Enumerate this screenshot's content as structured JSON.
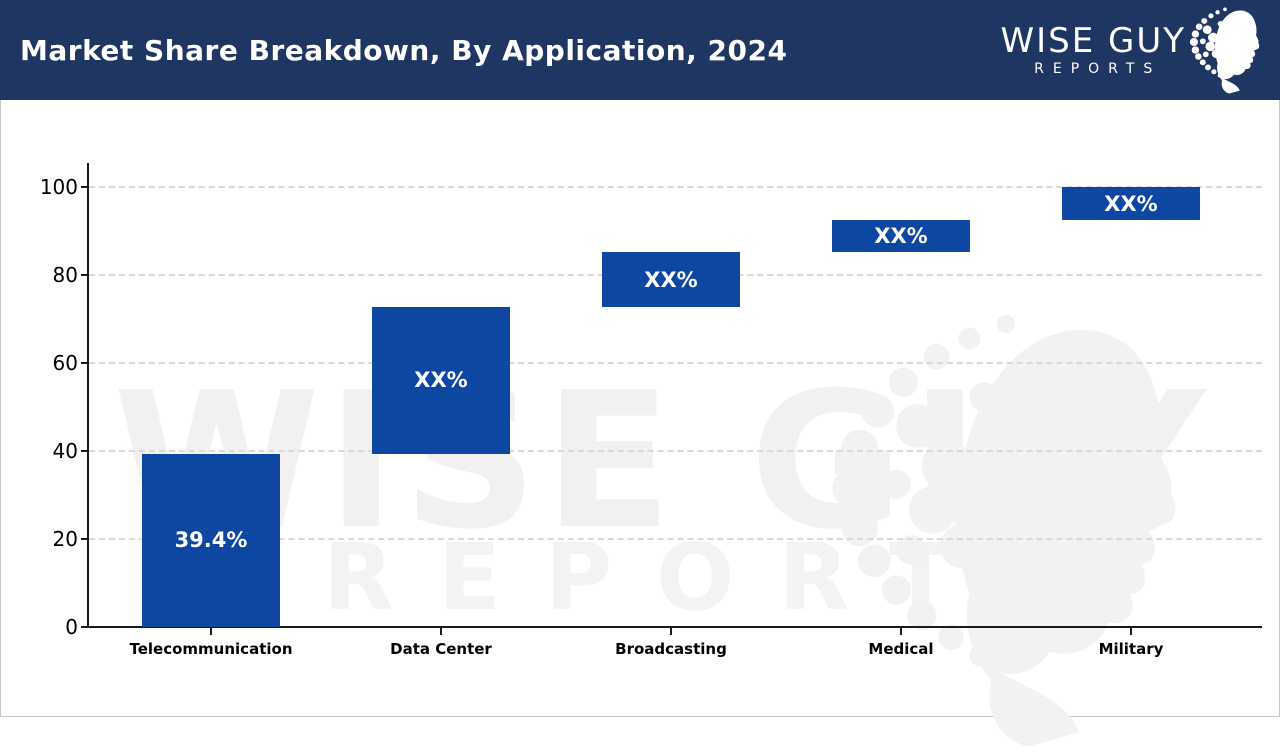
{
  "header": {
    "title": "Market Share Breakdown, By Application, 2024",
    "logo": {
      "line1": "WISE GUY",
      "line2": "REPORTS"
    }
  },
  "watermark": {
    "line1": "WISE GUY",
    "line2": "REPORTS"
  },
  "colors": {
    "header_bg": "#1f3562",
    "bar": "#0d47a1",
    "grid": "#d9d9d9",
    "axis": "#1a1a1a",
    "bar_label": "#ffffff",
    "watermark": "#f1f1f1"
  },
  "chart_data": {
    "type": "bar",
    "subtype": "waterfall",
    "title": "Market Share Breakdown, By Application, 2024",
    "xlabel": "",
    "ylabel": "",
    "categories": [
      "Telecommunication",
      "Data Center",
      "Broadcasting",
      "Medical",
      "Military"
    ],
    "series": [
      {
        "name": "Market share (%)",
        "segments": [
          {
            "category": "Telecommunication",
            "start": 0,
            "end": 39.4,
            "label": "39.4%"
          },
          {
            "category": "Data Center",
            "start": 39.4,
            "end": 72.7,
            "label": "XX%"
          },
          {
            "category": "Broadcasting",
            "start": 72.7,
            "end": 85.2,
            "label": "XX%"
          },
          {
            "category": "Medical",
            "start": 85.2,
            "end": 92.5,
            "label": "XX%"
          },
          {
            "category": "Military",
            "start": 92.5,
            "end": 100,
            "label": "XX%"
          }
        ]
      }
    ],
    "yticks": [
      0,
      20,
      40,
      60,
      80,
      100
    ],
    "ylim": [
      0,
      105.5
    ],
    "grid": true,
    "legend": false
  }
}
